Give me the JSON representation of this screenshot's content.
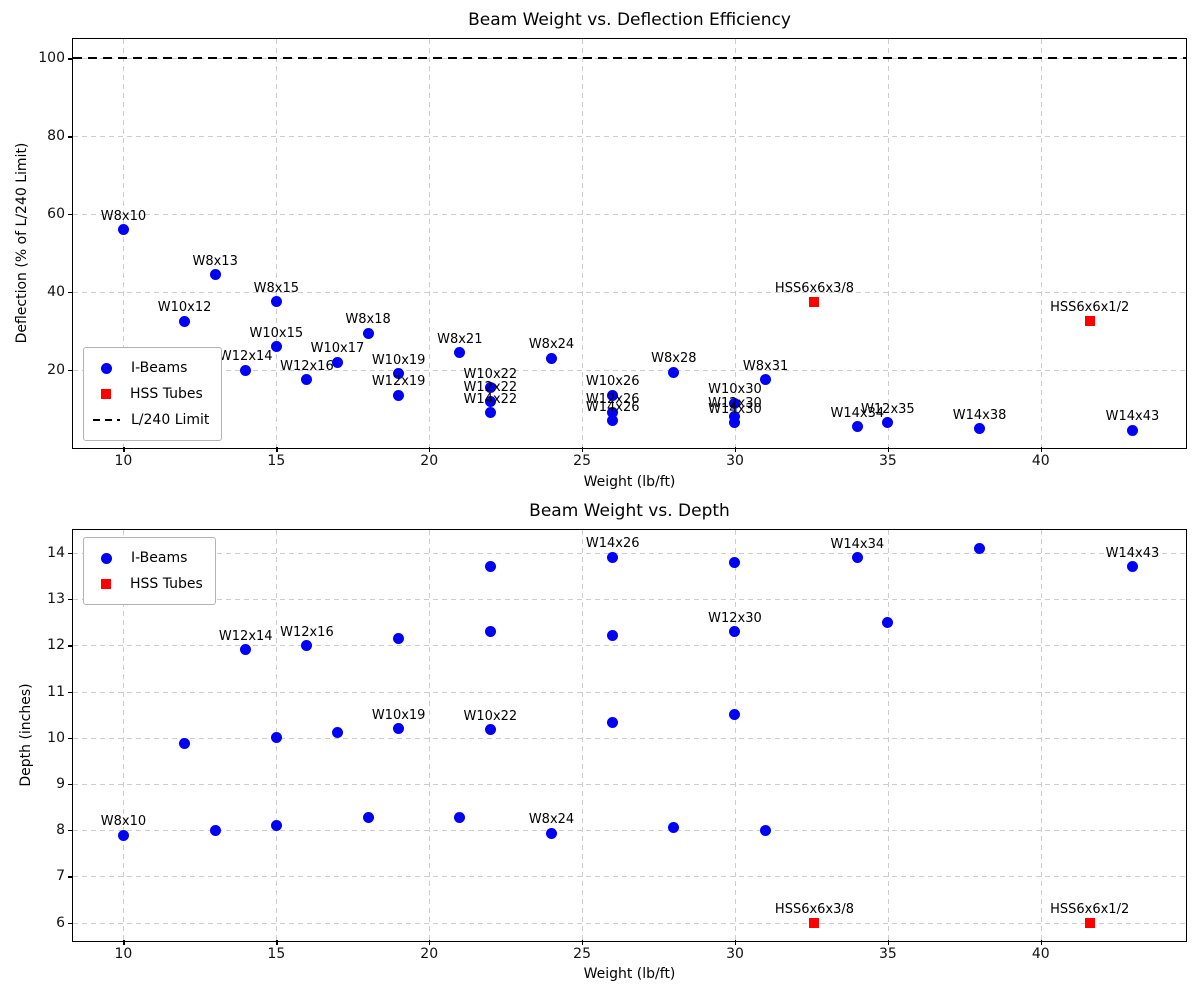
{
  "figure": {
    "background": "#ffffff"
  },
  "colors": {
    "ibeam": "#0000f5",
    "hss": "#ff0000",
    "limit_line": "#000000",
    "grid": "#cdcdcd",
    "text": "#000000"
  },
  "charts": [
    {
      "title": "Beam Weight vs. Deflection Efficiency",
      "xlabel": "Weight (lb/ft)",
      "ylabel": "Deflection (% of L/240 Limit)",
      "xlim": [
        8.35,
        44.75
      ],
      "ylim": [
        0,
        105
      ],
      "xticks": [
        10,
        15,
        20,
        25,
        30,
        35,
        40
      ],
      "yticks": [
        20,
        40,
        60,
        80,
        100
      ],
      "value_key": "deflection_pct",
      "label_mode": "all",
      "hline": {
        "y": 100
      },
      "legend": {
        "corner": "lower-left",
        "items": [
          {
            "label": "I-Beams",
            "marker": "circle",
            "color": "ibeam"
          },
          {
            "label": "HSS Tubes",
            "marker": "square",
            "color": "hss"
          },
          {
            "label": "L/240 Limit",
            "marker": "dash",
            "color": "limit_line"
          }
        ]
      }
    },
    {
      "title": "Beam Weight vs. Depth",
      "xlabel": "Weight (lb/ft)",
      "ylabel": "Depth (inches)",
      "xlim": [
        8.35,
        44.75
      ],
      "ylim": [
        5.6,
        14.5
      ],
      "xticks": [
        10,
        15,
        20,
        25,
        30,
        35,
        40
      ],
      "yticks": [
        6,
        7,
        8,
        9,
        10,
        11,
        12,
        13,
        14
      ],
      "value_key": "depth_in",
      "label_mode": "flagged",
      "legend": {
        "corner": "upper-left",
        "items": [
          {
            "label": "I-Beams",
            "marker": "circle",
            "color": "ibeam"
          },
          {
            "label": "HSS Tubes",
            "marker": "square",
            "color": "hss"
          }
        ]
      }
    }
  ],
  "chart_data": {
    "type": "scatter",
    "series_names": [
      "I-Beams",
      "HSS Tubes"
    ],
    "x_field": "weight_lb_ft",
    "charts": [
      "deflection_pct vs weight",
      "depth_in vs weight"
    ],
    "limit_line_y": 100,
    "beams": [
      {
        "name": "W8x10",
        "type": "ibeam",
        "weight": 10,
        "deflection_pct": 56,
        "depth_in": 7.89,
        "label_depth": true
      },
      {
        "name": "W10x12",
        "type": "ibeam",
        "weight": 12,
        "deflection_pct": 32.5,
        "depth_in": 9.87,
        "label_depth": false
      },
      {
        "name": "W8x13",
        "type": "ibeam",
        "weight": 13,
        "deflection_pct": 44.5,
        "depth_in": 7.99,
        "label_depth": false
      },
      {
        "name": "W12x14",
        "type": "ibeam",
        "weight": 14,
        "deflection_pct": 20,
        "depth_in": 11.91,
        "label_depth": true
      },
      {
        "name": "W8x15",
        "type": "ibeam",
        "weight": 15,
        "deflection_pct": 37.5,
        "depth_in": 8.11,
        "label_depth": false
      },
      {
        "name": "W10x15",
        "type": "ibeam",
        "weight": 15,
        "deflection_pct": 26,
        "depth_in": 10.0,
        "label_depth": false
      },
      {
        "name": "W12x16",
        "type": "ibeam",
        "weight": 16,
        "deflection_pct": 17.5,
        "depth_in": 11.99,
        "label_depth": true
      },
      {
        "name": "W10x17",
        "type": "ibeam",
        "weight": 17,
        "deflection_pct": 22,
        "depth_in": 10.11,
        "label_depth": false
      },
      {
        "name": "W8x18",
        "type": "ibeam",
        "weight": 18,
        "deflection_pct": 29.5,
        "depth_in": 8.27,
        "label_depth": false
      },
      {
        "name": "W10x19",
        "type": "ibeam",
        "weight": 19,
        "deflection_pct": 19,
        "depth_in": 10.2,
        "label_depth": true
      },
      {
        "name": "W12x19",
        "type": "ibeam",
        "weight": 19,
        "deflection_pct": 13.5,
        "depth_in": 12.16,
        "label_depth": false
      },
      {
        "name": "W8x21",
        "type": "ibeam",
        "weight": 21,
        "deflection_pct": 24.5,
        "depth_in": 8.28,
        "label_depth": false
      },
      {
        "name": "W10x22",
        "type": "ibeam",
        "weight": 22,
        "deflection_pct": 15.5,
        "depth_in": 10.17,
        "label_depth": true
      },
      {
        "name": "W12x22",
        "type": "ibeam",
        "weight": 22,
        "deflection_pct": 12,
        "depth_in": 12.31,
        "label_depth": false
      },
      {
        "name": "W14x22",
        "type": "ibeam",
        "weight": 22,
        "deflection_pct": 9,
        "depth_in": 13.7,
        "label_depth": false
      },
      {
        "name": "W8x24",
        "type": "ibeam",
        "weight": 24,
        "deflection_pct": 23,
        "depth_in": 7.93,
        "label_depth": true
      },
      {
        "name": "W10x26",
        "type": "ibeam",
        "weight": 26,
        "deflection_pct": 13.5,
        "depth_in": 10.33,
        "label_depth": false
      },
      {
        "name": "W12x26",
        "type": "ibeam",
        "weight": 26,
        "deflection_pct": 9,
        "depth_in": 12.22,
        "label_depth": false
      },
      {
        "name": "W14x26",
        "type": "ibeam",
        "weight": 26,
        "deflection_pct": 7,
        "depth_in": 13.91,
        "label_depth": true
      },
      {
        "name": "W8x28",
        "type": "ibeam",
        "weight": 28,
        "deflection_pct": 19.5,
        "depth_in": 8.06,
        "label_depth": false
      },
      {
        "name": "W10x30",
        "type": "ibeam",
        "weight": 30,
        "deflection_pct": 11.5,
        "depth_in": 10.5,
        "label_depth": false
      },
      {
        "name": "W12x30",
        "type": "ibeam",
        "weight": 30,
        "deflection_pct": 8,
        "depth_in": 12.3,
        "label_depth": true
      },
      {
        "name": "W14x30",
        "type": "ibeam",
        "weight": 30,
        "deflection_pct": 6.5,
        "depth_in": 13.8,
        "label_depth": false
      },
      {
        "name": "W8x31",
        "type": "ibeam",
        "weight": 31,
        "deflection_pct": 17.5,
        "depth_in": 8.0,
        "label_depth": false
      },
      {
        "name": "W14x34",
        "type": "ibeam",
        "weight": 34,
        "deflection_pct": 5.5,
        "depth_in": 13.9,
        "label_depth": true
      },
      {
        "name": "W12x35",
        "type": "ibeam",
        "weight": 35,
        "deflection_pct": 6.5,
        "depth_in": 12.5,
        "label_depth": false
      },
      {
        "name": "W14x38",
        "type": "ibeam",
        "weight": 38,
        "deflection_pct": 5,
        "depth_in": 14.1,
        "label_depth": false
      },
      {
        "name": "W14x43",
        "type": "ibeam",
        "weight": 43,
        "deflection_pct": 4.5,
        "depth_in": 13.7,
        "label_depth": true
      },
      {
        "name": "HSS6x6x3/8",
        "type": "hss",
        "weight": 32.6,
        "deflection_pct": 37.5,
        "depth_in": 6.0,
        "label_depth": true
      },
      {
        "name": "HSS6x6x1/2",
        "type": "hss",
        "weight": 41.6,
        "deflection_pct": 32.5,
        "depth_in": 6.0,
        "label_depth": true
      }
    ]
  }
}
